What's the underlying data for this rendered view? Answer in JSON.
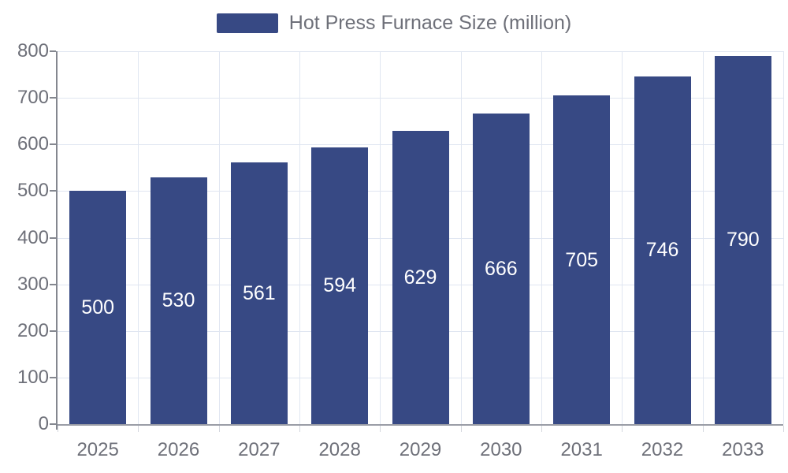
{
  "legend": {
    "label": "Hot Press Furnace Size (million)"
  },
  "chart_data": {
    "type": "bar",
    "title": "Hot Press Furnace Size (million)",
    "categories": [
      "2025",
      "2026",
      "2027",
      "2028",
      "2029",
      "2030",
      "2031",
      "2032",
      "2033"
    ],
    "values": [
      500,
      530,
      561,
      594,
      629,
      666,
      705,
      746,
      790
    ],
    "xlabel": "",
    "ylabel": "",
    "ylim": [
      0,
      800
    ],
    "ytick_interval": 100,
    "grid": true,
    "legend_position": "top",
    "bar_label_position": "inside-middle",
    "colors": {
      "bar": "#374984",
      "bar_label": "#FFFFFF",
      "axis_text": "#6E7079",
      "gridline": "#E0E6F1",
      "axis_line": "#9A9DA6",
      "legend_text": "#6E7079"
    }
  }
}
